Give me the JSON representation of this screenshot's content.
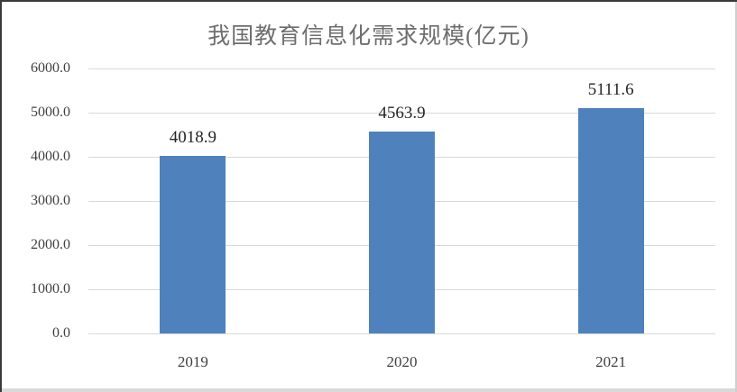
{
  "chart_data": {
    "type": "bar",
    "title": "我国教育信息化需求规模(亿元)",
    "categories": [
      "2019",
      "2020",
      "2021"
    ],
    "values": [
      4018.9,
      4563.9,
      5111.6
    ],
    "data_labels": [
      "4018.9",
      "4563.9",
      "5111.6"
    ],
    "xlabel": "",
    "ylabel": "",
    "ylim": [
      0,
      6000
    ],
    "ytick_interval": 1000,
    "ytick_labels": [
      "0.0",
      "1000.0",
      "2000.0",
      "3000.0",
      "4000.0",
      "5000.0",
      "6000.0"
    ],
    "grid": true,
    "legend_position": "none",
    "colors": {
      "bar": "#4F81BD",
      "gridline": "#D9D9D9",
      "axis_text": "#404040",
      "data_label_text": "#262626",
      "title_text": "#6E6E6E",
      "background": "#FFFFFF"
    }
  }
}
